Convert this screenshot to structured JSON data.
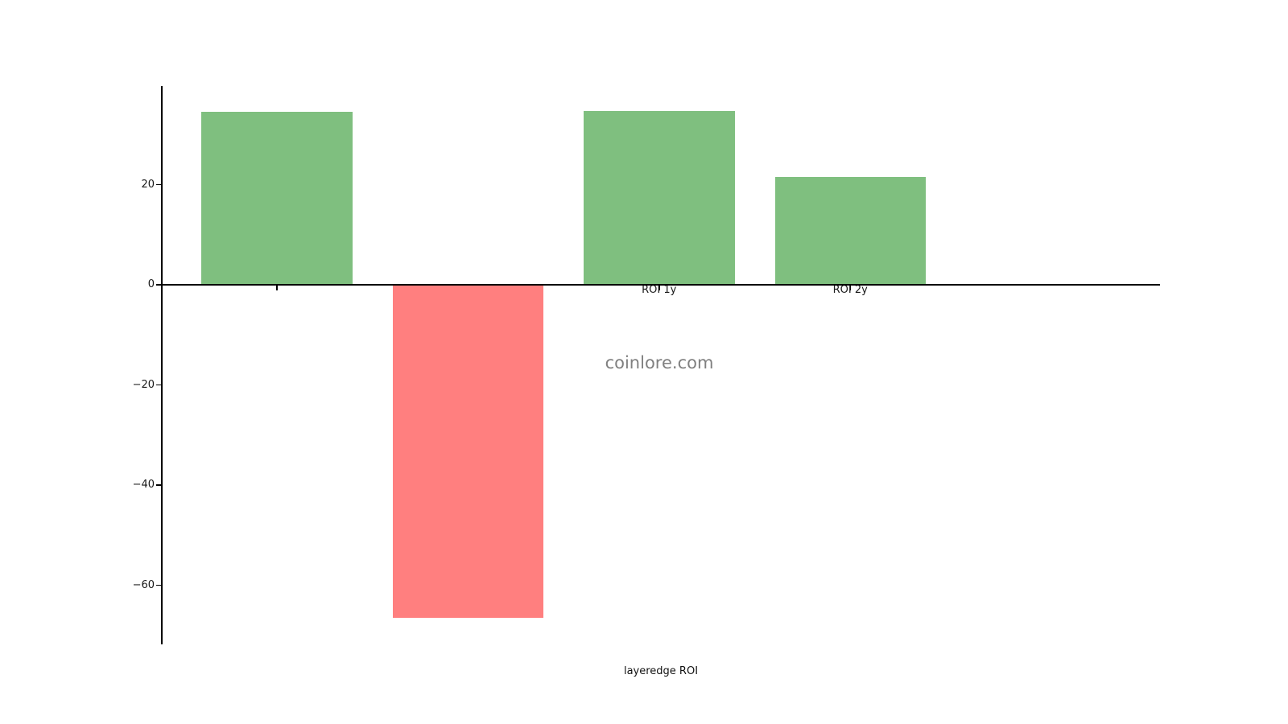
{
  "chart_data": {
    "type": "bar",
    "categories": [
      "",
      "",
      "ROI 1y",
      "ROI 2y"
    ],
    "values": [
      34.5,
      -66.5,
      34.7,
      21.5
    ],
    "title": "",
    "xlabel": "layeredge ROI",
    "ylabel": "",
    "ylim": [
      -71.6,
      39.7
    ],
    "yticks": [
      {
        "value": 20,
        "label": "20"
      },
      {
        "value": 0,
        "label": "0"
      },
      {
        "value": -20,
        "label": "−20"
      },
      {
        "value": -40,
        "label": "−40"
      },
      {
        "value": -60,
        "label": "−60"
      }
    ],
    "grid": false,
    "legend": null,
    "watermark": "coinlore.com",
    "colors": {
      "positive_bar": "#7fbf7f",
      "negative_bar": "#ff7f7f",
      "axis": "#000000",
      "tick_text": "#1a1a1a",
      "watermark_text": "#808080"
    },
    "notes": {
      "first_bar_tick_unlabeled": true,
      "negative_bar_covers_its_tick_and_label": true
    }
  }
}
